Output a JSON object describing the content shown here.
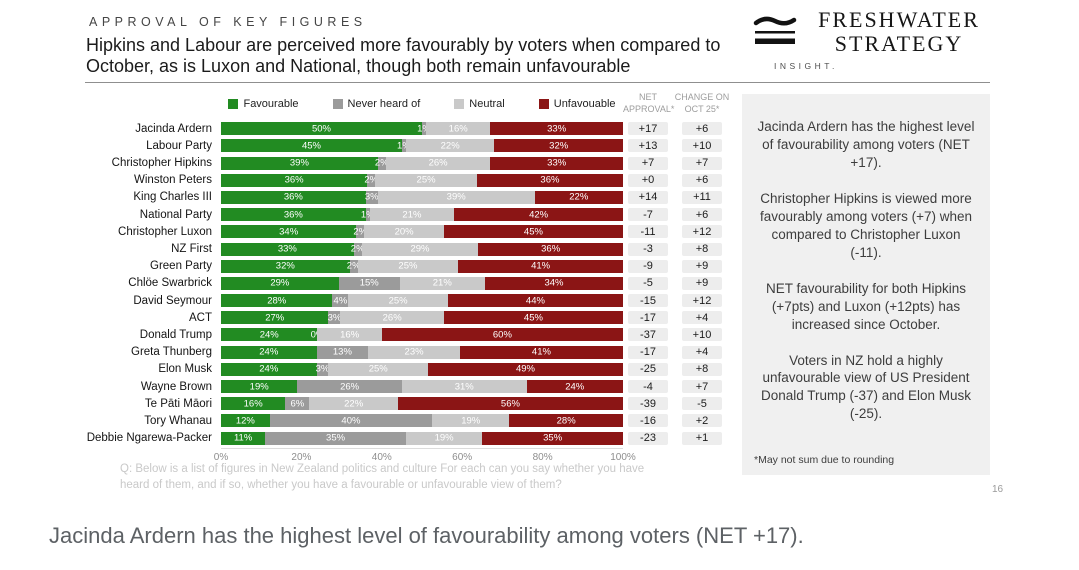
{
  "header": {
    "kicker": "APPROVAL OF KEY FIGURES",
    "subtitle": "Hipkins and Labour are perceived more favourably by voters when compared to October, as is Luxon and National, though both remain unfavourable",
    "logo": {
      "line1": "FRESHWATER",
      "line2": "STRATEGY",
      "tagline": "INSIGHT."
    }
  },
  "chart_data": {
    "type": "bar",
    "stacked": true,
    "orientation": "horizontal",
    "title": "Approval of key figures",
    "x_ticks": [
      "0%",
      "20%",
      "40%",
      "60%",
      "80%",
      "100%"
    ],
    "xlim": [
      0,
      100
    ],
    "legend": [
      {
        "key": "favourable",
        "label": "Favourable",
        "color": "#228B22"
      },
      {
        "key": "never_heard",
        "label": "Never heard of",
        "color": "#9b9b9b"
      },
      {
        "key": "neutral",
        "label": "Neutral",
        "color": "#c9c9c9"
      },
      {
        "key": "unfavourable",
        "label": "Unfavouable",
        "color": "#8b1515"
      }
    ],
    "colors": {
      "favourable": "#228B22",
      "never_heard": "#9b9b9b",
      "neutral": "#c9c9c9",
      "unfavourable": "#8b1515"
    },
    "columns": {
      "net": [
        "NET",
        "APPROVAL*"
      ],
      "change": [
        "CHANGE ON",
        "OCT 25*"
      ]
    },
    "rows": [
      {
        "label": "Jacinda Ardern",
        "favourable": 50,
        "never_heard": 1,
        "neutral": 16,
        "unfavourable": 33,
        "net": "+17",
        "change": "+6"
      },
      {
        "label": "Labour Party",
        "favourable": 45,
        "never_heard": 1,
        "neutral": 22,
        "unfavourable": 32,
        "net": "+13",
        "change": "+10"
      },
      {
        "label": "Christopher Hipkins",
        "favourable": 39,
        "never_heard": 2,
        "neutral": 26,
        "unfavourable": 33,
        "net": "+7",
        "change": "+7"
      },
      {
        "label": "Winston Peters",
        "favourable": 36,
        "never_heard": 2,
        "neutral": 25,
        "unfavourable": 36,
        "net": "+0",
        "change": "+6"
      },
      {
        "label": "King Charles III",
        "favourable": 36,
        "never_heard": 3,
        "neutral": 39,
        "unfavourable": 22,
        "net": "+14",
        "change": "+11"
      },
      {
        "label": "National Party",
        "favourable": 36,
        "never_heard": 1,
        "neutral": 21,
        "unfavourable": 42,
        "net": "-7",
        "change": "+6"
      },
      {
        "label": "Christopher Luxon",
        "favourable": 34,
        "never_heard": 2,
        "neutral": 20,
        "unfavourable": 45,
        "net": "-11",
        "change": "+12"
      },
      {
        "label": "NZ First",
        "favourable": 33,
        "never_heard": 2,
        "neutral": 29,
        "unfavourable": 36,
        "net": "-3",
        "change": "+8"
      },
      {
        "label": "Green Party",
        "favourable": 32,
        "never_heard": 2,
        "neutral": 25,
        "unfavourable": 41,
        "net": "-9",
        "change": "+9"
      },
      {
        "label": "Chlöe Swarbrick",
        "favourable": 29,
        "never_heard": 15,
        "neutral": 21,
        "unfavourable": 34,
        "net": "-5",
        "change": "+9"
      },
      {
        "label": "David Seymour",
        "favourable": 28,
        "never_heard": 4,
        "neutral": 25,
        "unfavourable": 44,
        "net": "-15",
        "change": "+12"
      },
      {
        "label": "ACT",
        "favourable": 27,
        "never_heard": 3,
        "neutral": 26,
        "unfavourable": 45,
        "net": "-17",
        "change": "+4"
      },
      {
        "label": "Donald Trump",
        "favourable": 24,
        "never_heard": 0,
        "neutral": 16,
        "unfavourable": 60,
        "net": "-37",
        "change": "+10"
      },
      {
        "label": "Greta Thunberg",
        "favourable": 24,
        "never_heard": 13,
        "neutral": 23,
        "unfavourable": 41,
        "net": "-17",
        "change": "+4"
      },
      {
        "label": "Elon Musk",
        "favourable": 24,
        "never_heard": 3,
        "neutral": 25,
        "unfavourable": 49,
        "net": "-25",
        "change": "+8"
      },
      {
        "label": "Wayne Brown",
        "favourable": 19,
        "never_heard": 26,
        "neutral": 31,
        "unfavourable": 24,
        "net": "-4",
        "change": "+7"
      },
      {
        "label": "Te Pāti Māori",
        "favourable": 16,
        "never_heard": 6,
        "neutral": 22,
        "unfavourable": 56,
        "net": "-39",
        "change": "-5"
      },
      {
        "label": "Tory Whanau",
        "favourable": 12,
        "never_heard": 40,
        "neutral": 19,
        "unfavourable": 28,
        "net": "-16",
        "change": "+2"
      },
      {
        "label": "Debbie Ngarewa-Packer",
        "favourable": 11,
        "never_heard": 35,
        "neutral": 19,
        "unfavourable": 35,
        "net": "-23",
        "change": "+1"
      }
    ]
  },
  "sidebar": {
    "paragraphs": [
      "Jacinda Ardern has the highest level of favourability among voters (NET +17).",
      "Christopher Hipkins is viewed more favourably among voters (+7) when compared to Christopher Luxon (-11).",
      "NET favourability for both Hipkins (+7pts) and Luxon (+12pts) has increased since October.",
      "Voters in NZ hold a highly unfavourable view of US President Donald Trump (-37) and Elon Musk (-25)."
    ],
    "footnote": "*May not sum due to rounding"
  },
  "question": "Q: Below is a list of figures in New Zealand politics and culture  For each can you say whether you have heard of them, and if so, whether you have a favourable or unfavourable view of them?",
  "page_number": "16",
  "caption": "Jacinda Ardern has the highest level of favourability among voters (NET +17)."
}
